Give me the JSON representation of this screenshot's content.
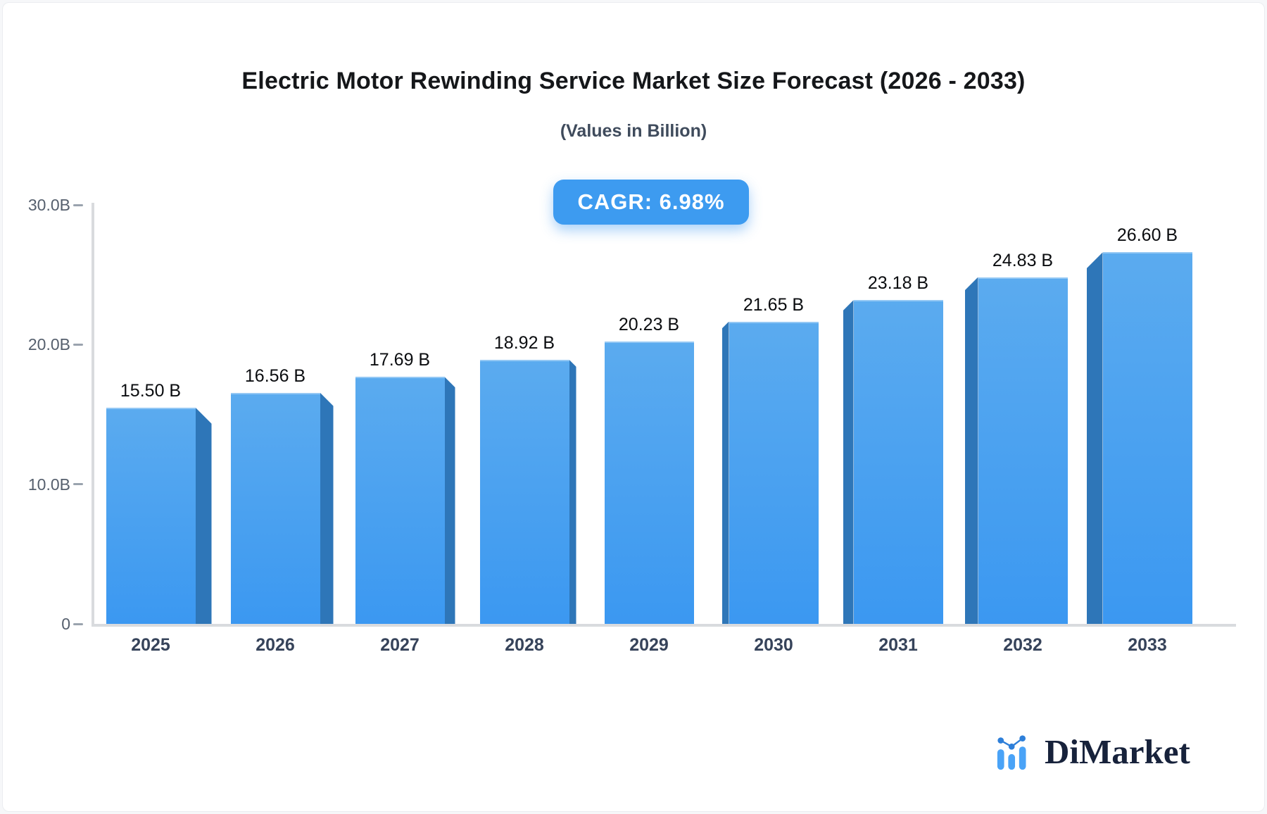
{
  "title": "Electric Motor Rewinding Service Market Size Forecast (2026 - 2033)",
  "subtitle": "(Values in Billion)",
  "cagr_label": "CAGR: 6.98%",
  "brand": {
    "name": "DiMarket"
  },
  "colors": {
    "accent": "#3d9bf0",
    "bar_top": "#5babef",
    "bar_bottom": "#3b98f1",
    "bar_side": "#2e76b8",
    "axis_line": "#d9dbde"
  },
  "chart_data": {
    "type": "bar",
    "title": "Electric Motor Rewinding Service Market Size Forecast (2026 - 2033)",
    "subtitle": "(Values in Billion)",
    "categories": [
      "2025",
      "2026",
      "2027",
      "2028",
      "2029",
      "2030",
      "2031",
      "2032",
      "2033"
    ],
    "values": [
      15.5,
      16.56,
      17.69,
      18.92,
      20.23,
      21.65,
      23.18,
      24.83,
      26.6
    ],
    "value_labels": [
      "15.50 B",
      "16.56 B",
      "17.69 B",
      "18.92 B",
      "20.23 B",
      "21.65 B",
      "23.18 B",
      "24.83 B",
      "26.60 B"
    ],
    "unit": "Billion",
    "cagr": "6.98%",
    "ylim": [
      0,
      30
    ],
    "y_ticks": [
      {
        "label": "30.0B",
        "value": 30
      },
      {
        "label": "20.0B",
        "value": 20
      },
      {
        "label": "10.0B",
        "value": 10
      },
      {
        "label": "0",
        "value": 0
      }
    ],
    "grid": false,
    "legend": false
  }
}
